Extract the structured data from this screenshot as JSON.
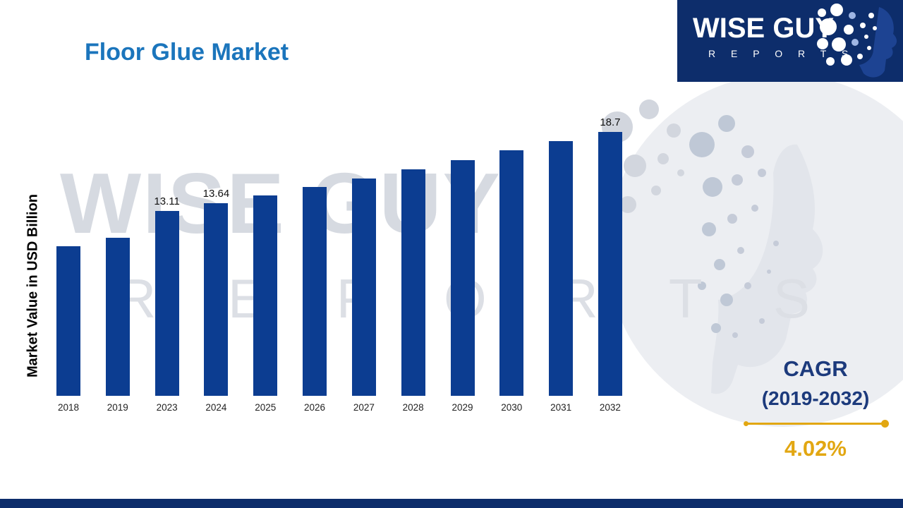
{
  "title": "Floor Glue Market",
  "logo": {
    "line1": "WISE GUY",
    "line2": "R E P O R T S"
  },
  "watermark": {
    "line1": "WISE GUY",
    "line2": "R E P O R T S"
  },
  "cagr": {
    "heading": "CAGR",
    "range": "(2019-2032)",
    "value": "4.02%"
  },
  "colors": {
    "bar": "#0c3d91",
    "navy": "#0d2d6b",
    "title_blue": "#1b75bc",
    "cagr_navy": "#1c3a7c",
    "gold": "#e2a712"
  },
  "chart_data": {
    "type": "bar",
    "title": "Floor Glue Market",
    "xlabel": "",
    "ylabel": "Market Value in USD Billion",
    "categories": [
      "2018",
      "2019",
      "2023",
      "2024",
      "2025",
      "2026",
      "2027",
      "2028",
      "2029",
      "2030",
      "2031",
      "2032"
    ],
    "values": [
      10.6,
      11.2,
      13.11,
      13.64,
      14.2,
      14.8,
      15.4,
      16.05,
      16.7,
      17.4,
      18.05,
      18.7
    ],
    "data_labels": {
      "2023": "13.11",
      "2024": "13.64",
      "2032": "18.7"
    },
    "ylim": [
      0,
      20
    ],
    "grid": false,
    "legend": false,
    "bar_color": "#0c3d91"
  }
}
